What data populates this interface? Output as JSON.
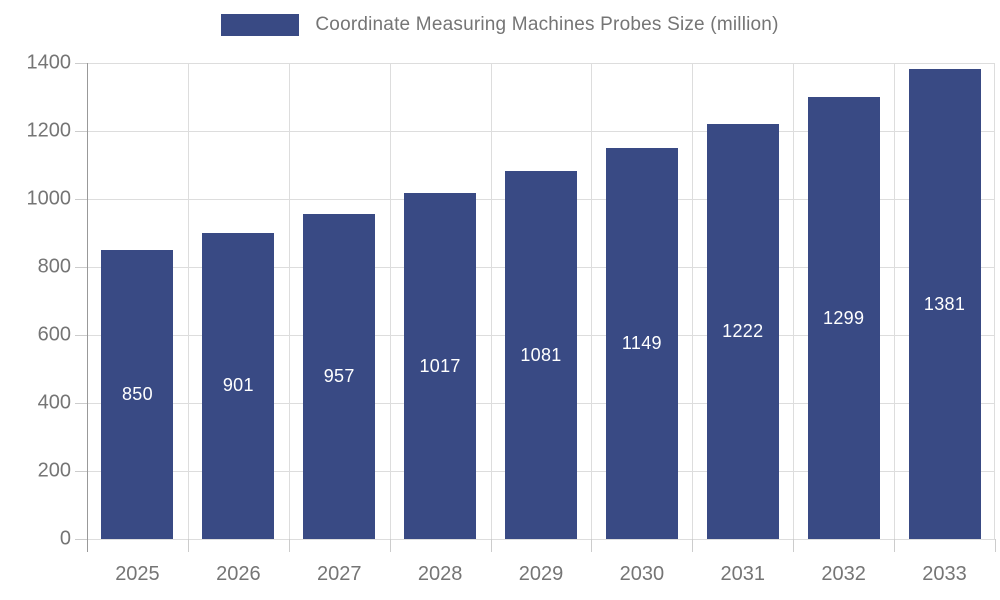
{
  "legend": {
    "label": "Coordinate Measuring Machines Probes Size (million)"
  },
  "chart_data": {
    "type": "bar",
    "title": "Coordinate Measuring Machines Probes Size (million)",
    "categories": [
      "2025",
      "2026",
      "2027",
      "2028",
      "2029",
      "2030",
      "2031",
      "2032",
      "2033"
    ],
    "values": [
      850,
      901,
      957,
      1017,
      1081,
      1149,
      1222,
      1299,
      1381
    ],
    "xlabel": "",
    "ylabel": "",
    "ylim": [
      0,
      1400
    ],
    "yticks": [
      0,
      200,
      400,
      600,
      800,
      1000,
      1200,
      1400
    ],
    "grid": true,
    "legend_position": "top-center",
    "bar_value_labels": "inside-center",
    "colors": {
      "bar": "#394a84",
      "bar_label_text": "#ffffff",
      "axis_text": "#757575",
      "gridline": "#dddddd",
      "axis_line": "#999999",
      "tick": "#cccccc",
      "background": "#ffffff"
    }
  }
}
